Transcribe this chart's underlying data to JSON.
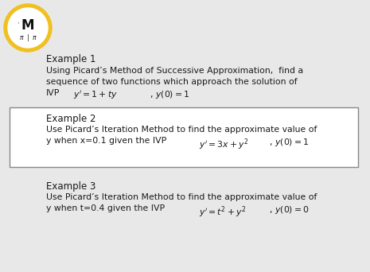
{
  "background_color": "#e8e8e8",
  "box_facecolor": "#ffffff",
  "box_edgecolor": "#888888",
  "text_color": "#1a1a1a",
  "logo_outer_color": "#f0c020",
  "logo_inner_color": "#ffffff",
  "fs_title": 8.5,
  "fs_body": 7.8,
  "example1_title": "Example 1",
  "example1_l1": "Using Picard’s Method of Successive Approximation,  find a",
  "example1_l2": "sequence of two functions which approach the solution of",
  "example2_title": "Example 2",
  "example2_l1": "Use Picard’s Iteration Method to find the approximate value of",
  "example3_title": "Example 3",
  "example3_l1": "Use Picard’s Iteration Method to find the approximate value of"
}
